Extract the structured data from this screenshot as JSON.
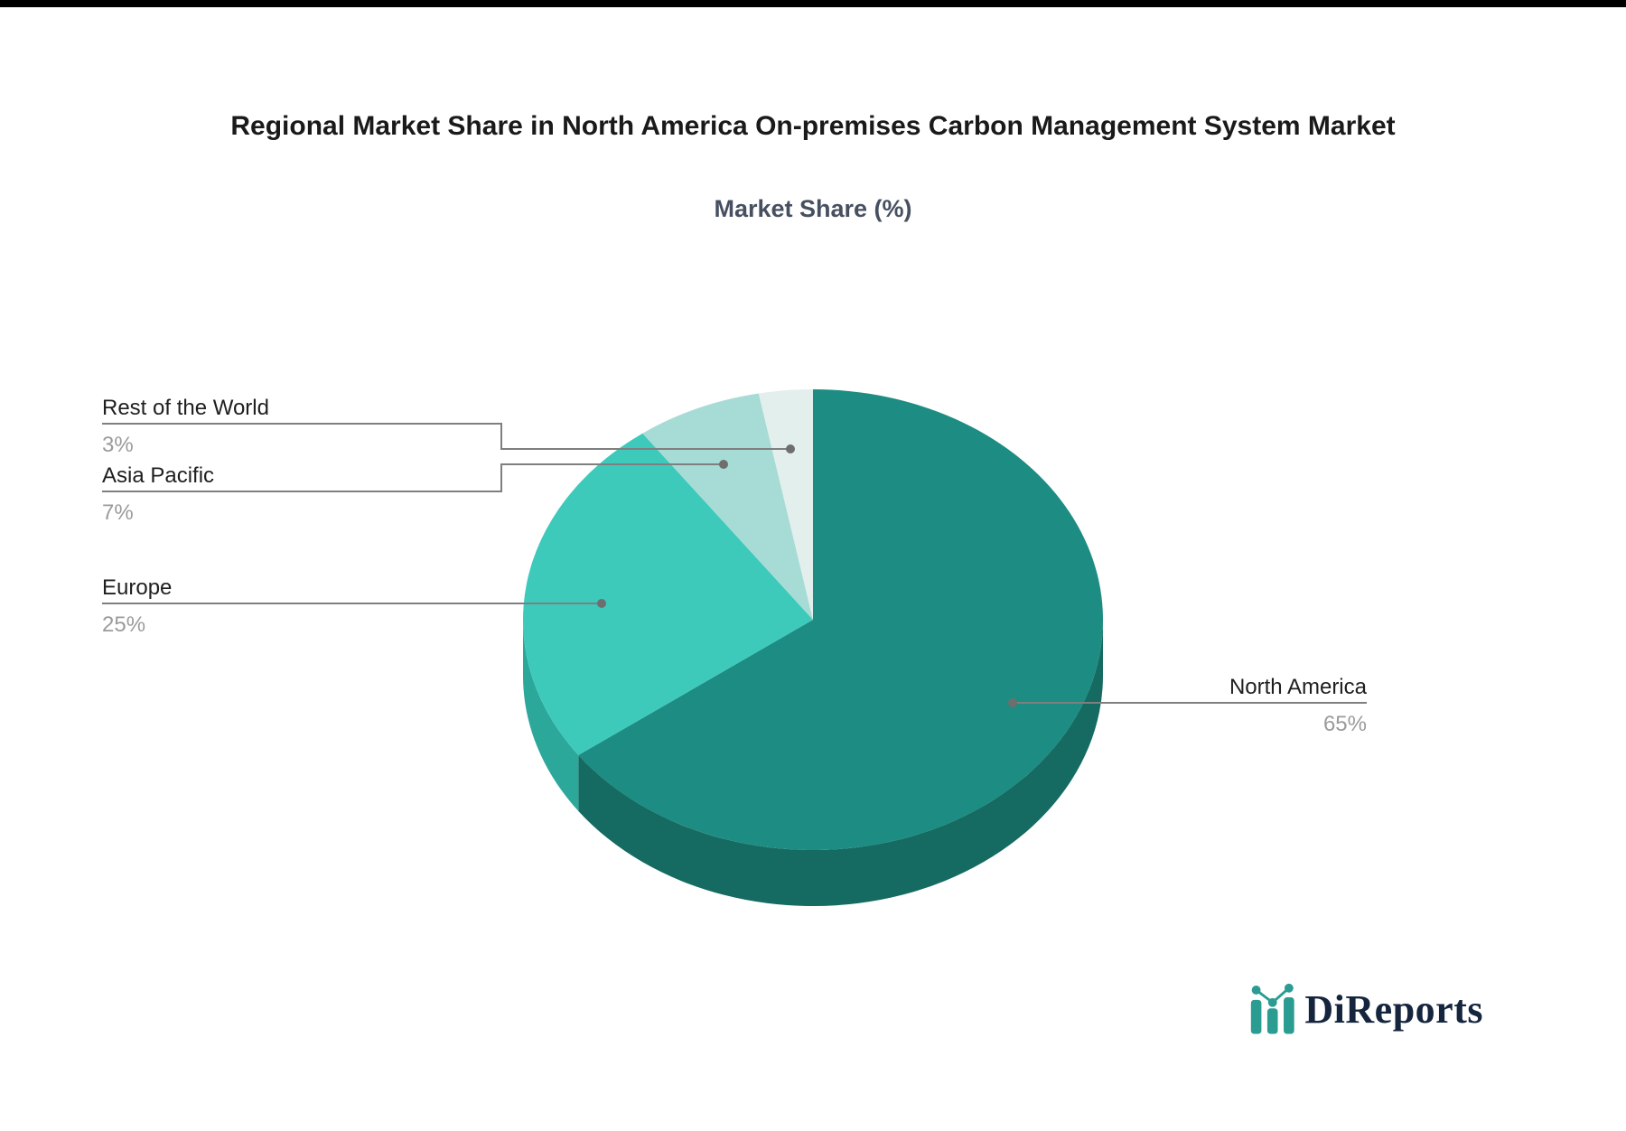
{
  "header": {
    "title": "Regional Market Share in North America On-premises Carbon Management System Market",
    "subtitle": "Market Share (%)"
  },
  "chart_data": {
    "type": "pie",
    "title": "Regional Market Share in North America On-premises Carbon Management System Market",
    "subtitle": "Market Share (%)",
    "unit": "%",
    "effect": "3d",
    "legend_position": "callout-labels",
    "labels": [
      "North America",
      "Europe",
      "Asia Pacific",
      "Rest of the World"
    ],
    "values": [
      65,
      25,
      7,
      3
    ],
    "colors_top": [
      "#1d8c82",
      "#3dcabb",
      "#a6dcd5",
      "#e2efed"
    ],
    "colors_side": [
      "#156a61",
      "#2ca89b",
      "#8fccc4",
      "#c9e0dc"
    ]
  },
  "callouts": {
    "rest_of_world": {
      "label": "Rest of the World",
      "value": "3%"
    },
    "asia_pacific": {
      "label": "Asia Pacific",
      "value": "7%"
    },
    "europe": {
      "label": "Europe",
      "value": "25%"
    },
    "north_america": {
      "label": "North America",
      "value": "65%"
    }
  },
  "logo": {
    "text": "DiReports",
    "icon": "bar-line-chart-icon",
    "accent_color": "#2a9c92",
    "text_color": "#15253d"
  }
}
